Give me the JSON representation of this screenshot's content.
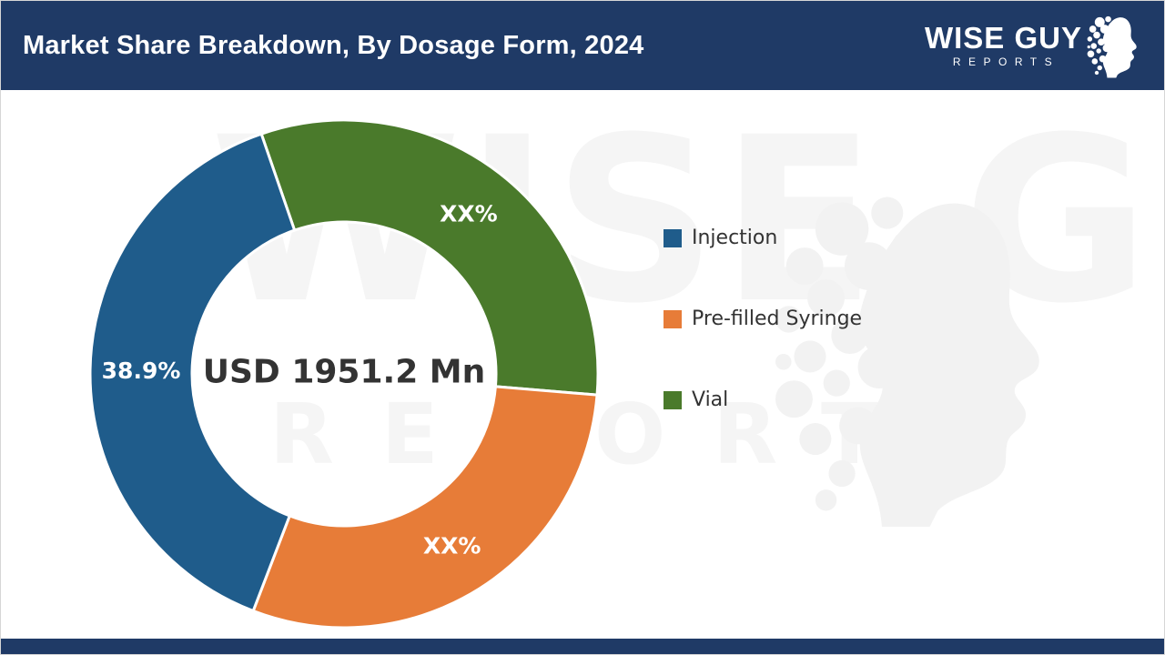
{
  "header": {
    "title": "Market Share Breakdown, By Dosage Form, 2024",
    "logo": {
      "line1": "WISE GUY",
      "line2": "REPORTS"
    }
  },
  "watermark": {
    "line1": "WISE GUY",
    "line2": "REPORTS"
  },
  "chart_data": {
    "type": "pie",
    "donut": true,
    "title": "Market Share Breakdown, By Dosage Form, 2024",
    "center_label": "USD 1951.2 Mn",
    "start_angle": -19,
    "legend_position": "right",
    "series": [
      {
        "name": "Injection",
        "value": 38.9,
        "label": "38.9%",
        "color": "#1f5c8b"
      },
      {
        "name": "Pre-filled Syringe",
        "value": 29.5,
        "label": "XX%",
        "color": "#e77c38"
      },
      {
        "name": "Vial",
        "value": 31.6,
        "label": "XX%",
        "color": "#4a7a2b"
      }
    ]
  },
  "colors": {
    "header_bg": "#1f3a66",
    "footer_bg": "#1f3a66",
    "center_text": "#333333",
    "segment_label_text": "#ffffff"
  }
}
